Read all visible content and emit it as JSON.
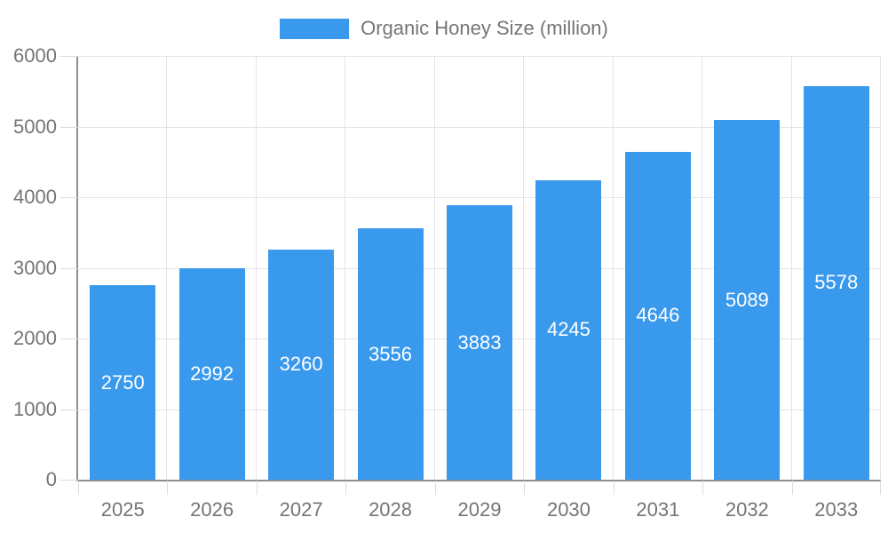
{
  "chart_data": {
    "type": "bar",
    "title": "",
    "legend": "Organic Honey Size (million)",
    "legend_position": "top",
    "categories": [
      "2025",
      "2026",
      "2027",
      "2028",
      "2029",
      "2030",
      "2031",
      "2032",
      "2033"
    ],
    "values": [
      2750,
      2992,
      3260,
      3556,
      3883,
      4245,
      4646,
      5089,
      5578
    ],
    "xlabel": "",
    "ylabel": "",
    "ylim": [
      0,
      6000
    ],
    "yticks": [
      0,
      1000,
      2000,
      3000,
      4000,
      5000,
      6000
    ],
    "grid": true,
    "bar_labels_shown": true,
    "colors": {
      "bar": "#3999EC",
      "bar_label": "#FFFFFF",
      "axis_text": "#757575",
      "gridline": "#E4E4E7",
      "tick": "#DCDCDE",
      "axis_line": "#8E8E8E",
      "background": "#FFFFFF"
    }
  }
}
